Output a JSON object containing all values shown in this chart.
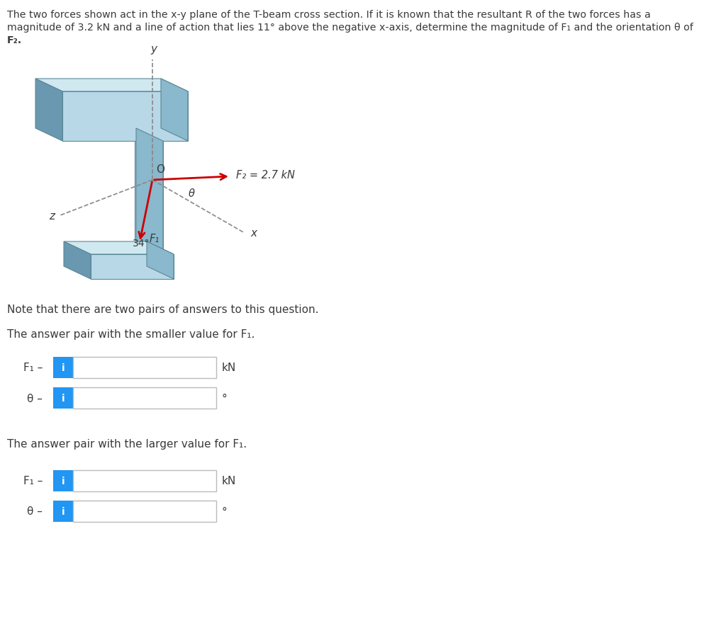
{
  "bg_color": "#ffffff",
  "text_color": "#3a3a3a",
  "arrow_color": "#cc0000",
  "beam_light": "#b8d8e8",
  "beam_mid": "#8ab8cc",
  "beam_dark": "#6a98b0",
  "beam_top_face": "#d0e8f0",
  "beam_edge": "#5a8898",
  "dashed_color": "#888888",
  "info_btn_color": "#2196F3",
  "input_border_color": "#bbbbbb",
  "line1": "The two forces shown act in the x-y plane of the T-beam cross section. If it is known that the resultant R of the two forces has a",
  "line2": "magnitude of 3.2 kN and a line of action that lies 11° above the negative x-axis, determine the magnitude of F₁ and the orientation θ of",
  "line3": "F₂.",
  "note_text": "Note that there are two pairs of answers to this question.",
  "smaller_text": "The answer pair with the smaller value for F₁.",
  "larger_text": "The answer pair with the larger value for F₁.",
  "F2_label": "F₂ = 2.7 kN",
  "F1_label": "F₁",
  "angle34": "34°",
  "theta_sym": "θ",
  "O_label": "O",
  "x_label": "x",
  "y_label": "y",
  "z_label": "z"
}
